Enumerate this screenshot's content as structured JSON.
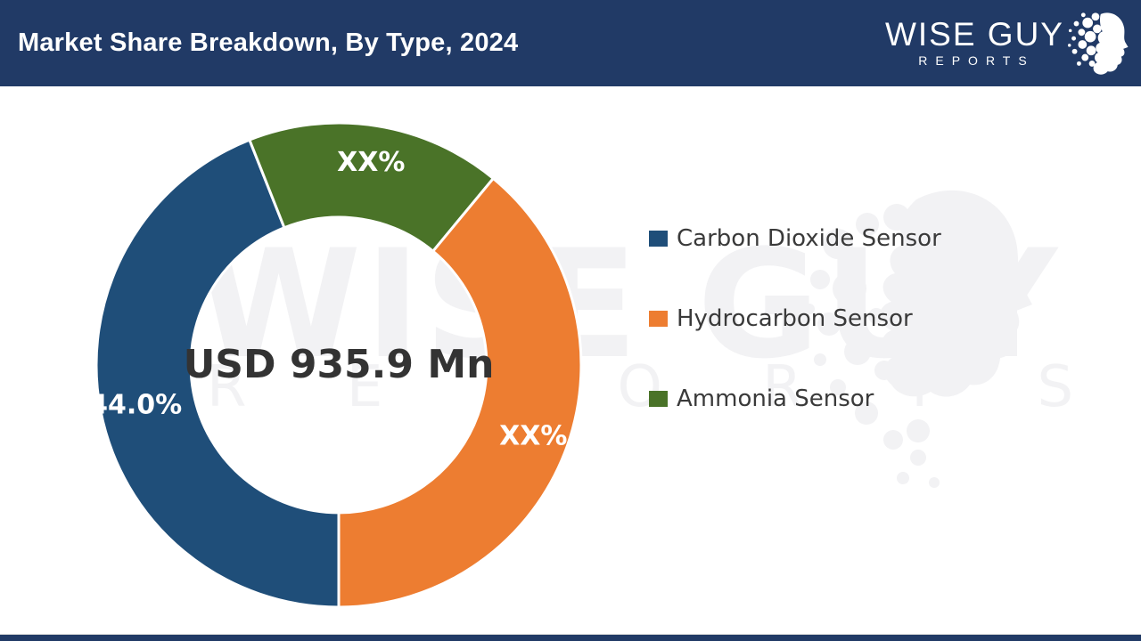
{
  "header": {
    "title": "Market Share Breakdown, By Type, 2024",
    "logo": {
      "brand_line1": "WISE GUY",
      "brand_line2": "REPORTS"
    }
  },
  "chart_data": {
    "type": "pie",
    "subtype": "donut",
    "title": "Market Share Breakdown, By Type, 2024",
    "center_label": "USD 935.9 Mn",
    "units": "percent of market share",
    "start_angle_deg": 180,
    "direction": "clockwise",
    "inner_radius_ratio": 0.61,
    "legend_position": "right",
    "segments": [
      {
        "name": "Carbon Dioxide Sensor",
        "value_pct": 44.0,
        "label": "44.0%",
        "color": "#1F4E79"
      },
      {
        "name": "Ammonia Sensor",
        "value_pct": 17.0,
        "label": "XX%",
        "color": "#4A7328"
      },
      {
        "name": "Hydrocarbon Sensor",
        "value_pct": 39.0,
        "label": "XX%",
        "color": "#ED7D31"
      }
    ]
  },
  "legend": {
    "items": [
      {
        "label": "Carbon Dioxide Sensor",
        "color": "#1F4E79"
      },
      {
        "label": "Hydrocarbon Sensor",
        "color": "#ED7D31"
      },
      {
        "label": "Ammonia Sensor",
        "color": "#4A7328"
      }
    ]
  },
  "watermark": {
    "line1": "WISE GUY",
    "line2": "R E P O R T S"
  },
  "colors": {
    "header_bg": "#213A66",
    "footer_bg": "#213A66",
    "center_text": "#333333",
    "legend_text": "#3a3a3a",
    "slice_label_text": "#ffffff"
  }
}
